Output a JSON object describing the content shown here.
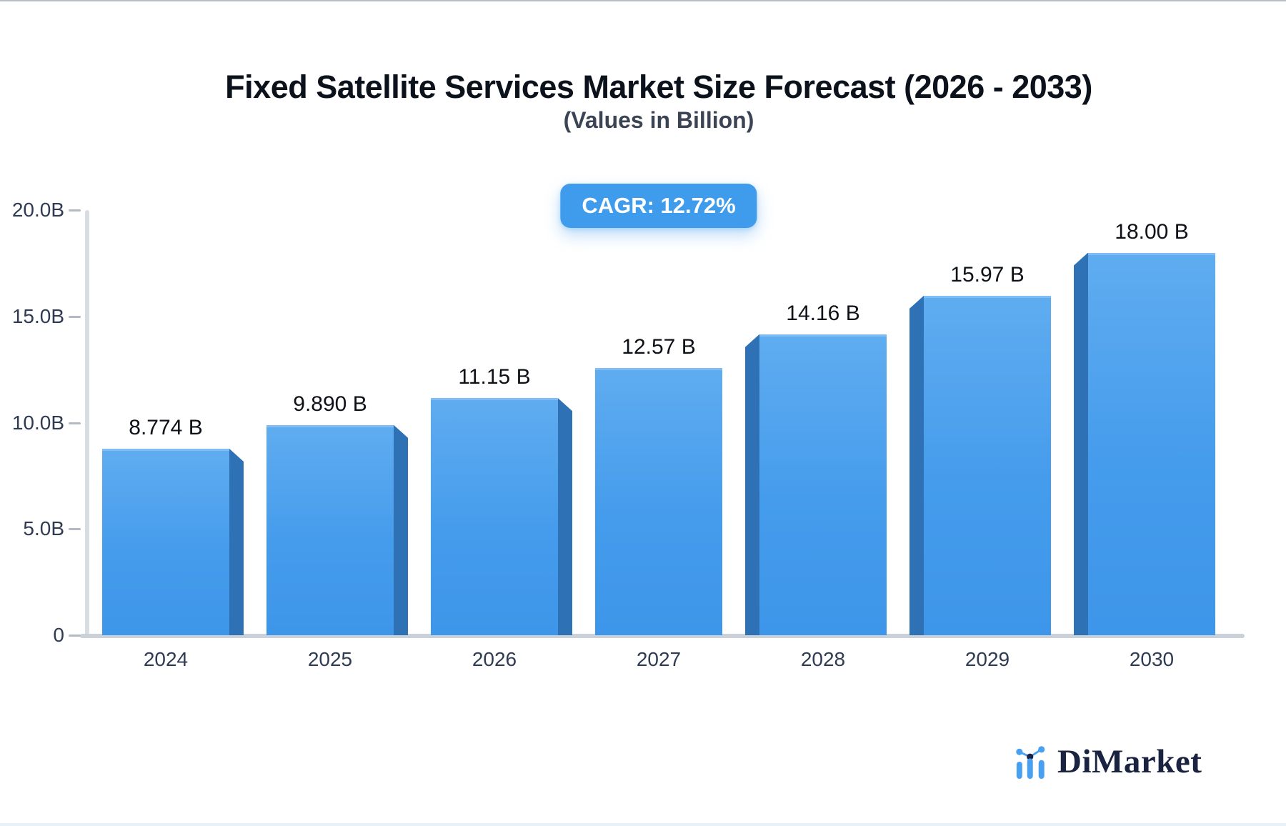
{
  "header": {
    "title": "Fixed Satellite Services Market Size Forecast (2026 - 2033)",
    "subtitle": "(Values in Billion)",
    "cagr_badge": "CAGR: 12.72%"
  },
  "chart_data": {
    "type": "bar",
    "title": "Fixed Satellite Services Market Size Forecast (2026 - 2033)",
    "subtitle": "(Values in Billion)",
    "categories": [
      "2024",
      "2025",
      "2026",
      "2027",
      "2028",
      "2029",
      "2030"
    ],
    "values": [
      8.774,
      9.89,
      11.15,
      12.57,
      14.16,
      15.97,
      18.0
    ],
    "value_labels": [
      "8.774 B",
      "9.890 B",
      "11.15 B",
      "12.57 B",
      "14.16 B",
      "15.97 B",
      "18.00 B"
    ],
    "xlabel": "",
    "ylabel": "",
    "ylim": [
      0,
      20
    ],
    "yticks": [
      {
        "value": 0,
        "label": "0"
      },
      {
        "value": 5,
        "label": "5.0B"
      },
      {
        "value": 10,
        "label": "10.0B"
      },
      {
        "value": 15,
        "label": "15.0B"
      },
      {
        "value": 20,
        "label": "20.0B"
      }
    ],
    "grid": false,
    "legend": false,
    "bar_style": "3d-perspective-center",
    "annotations": [
      "CAGR: 12.72%"
    ],
    "colors": {
      "bar_face_top": "#5facf0",
      "bar_face": "#459cec",
      "bar_face_bottom": "#3e96ea",
      "bar_side": "#2e71b5",
      "bar_top_highlight": "#7fbdf4",
      "badge_bg": "#3f9ced",
      "badge_text": "#ffffff",
      "axis_line": "#d8dde4",
      "tick": "#b3bac4",
      "axis_text": "#2f3b52",
      "value_text": "#0e1218"
    }
  },
  "branding": {
    "logo_text": "DiMarket",
    "logo_icon": "bar-chart-logo-icon",
    "logo_text_color": "#1a2440",
    "logo_icon_color": "#4aa0f0"
  }
}
